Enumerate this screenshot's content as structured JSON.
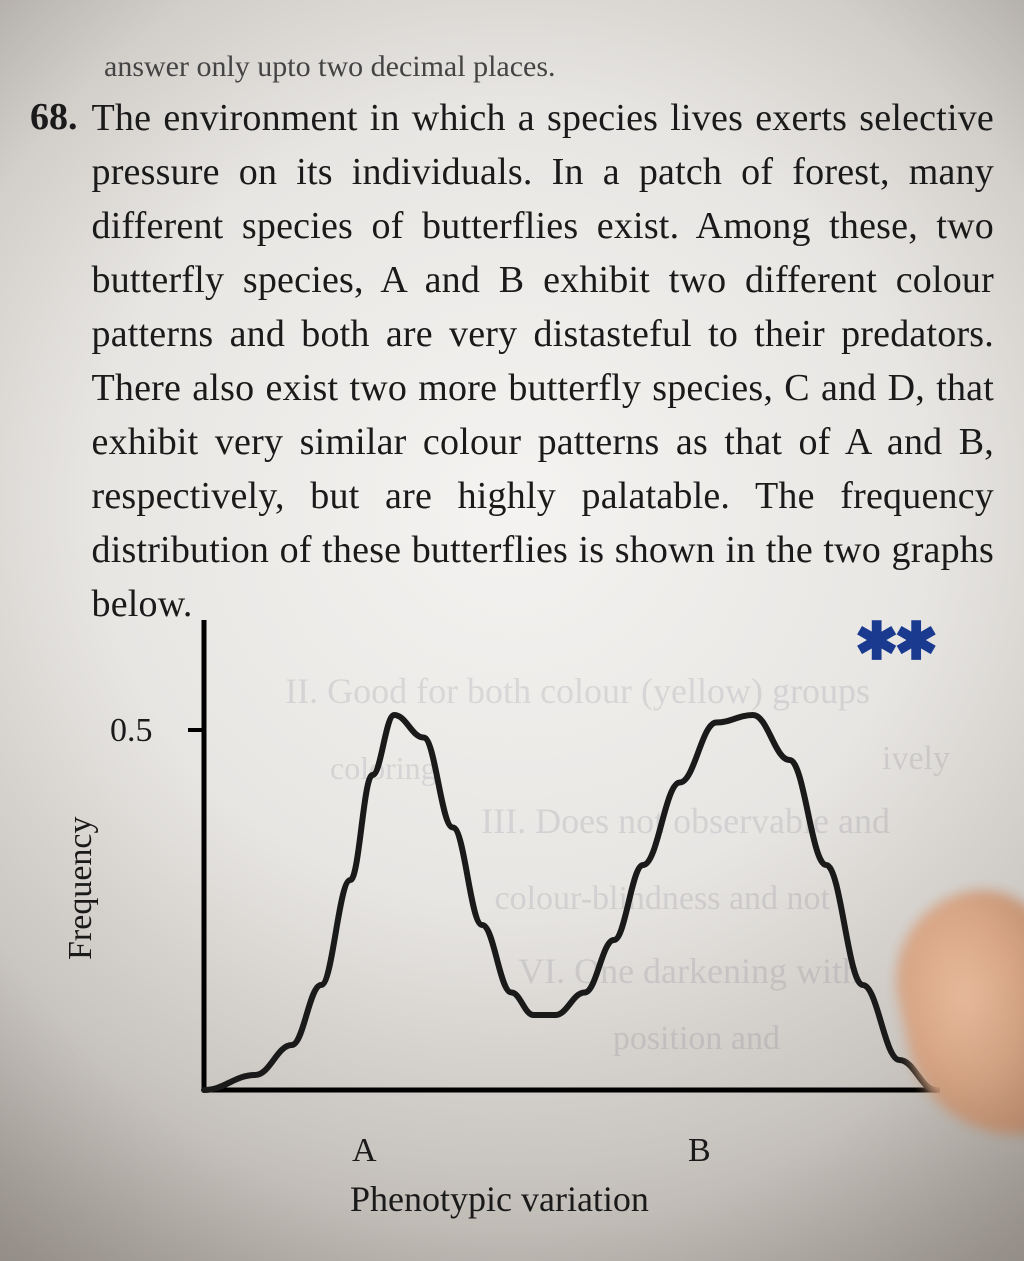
{
  "question": {
    "number": "68.",
    "truncated_line": "answer only upto two decimal places.",
    "text": "The environment in which a species lives exerts selective pressure on its individuals. In a patch of forest, many different species of butterflies exist. Among these, two butterfly species, A and B exhibit two different colour patterns and both are very distasteful to their predators. There also exist two more butterfly species, C and D, that exhibit very similar colour patterns as that of A and B, respectively, but are highly palatable. The frequency distribution of these butterflies is shown in the two graphs below."
  },
  "annotation": {
    "asterisks": "✱✱",
    "color": "#1a3a8f"
  },
  "chart": {
    "type": "line",
    "xlabel": "Phenotypic variation",
    "ylabel": "Frequency",
    "ytick_label": "0.5",
    "xticks": [
      "A",
      "B"
    ],
    "line_color": "#1a1a1a",
    "line_width": 6,
    "axis_color": "#000000",
    "axis_width": 5,
    "background_color": "transparent",
    "label_fontsize": 34,
    "series": {
      "x": [
        0,
        0.07,
        0.12,
        0.16,
        0.2,
        0.23,
        0.26,
        0.3,
        0.34,
        0.38,
        0.42,
        0.45,
        0.48,
        0.52,
        0.56,
        0.6,
        0.65,
        0.7,
        0.75,
        0.8,
        0.85,
        0.9,
        0.95,
        1.0
      ],
      "y": [
        0.0,
        0.02,
        0.06,
        0.14,
        0.28,
        0.42,
        0.5,
        0.47,
        0.35,
        0.22,
        0.13,
        0.1,
        0.1,
        0.13,
        0.2,
        0.3,
        0.41,
        0.49,
        0.5,
        0.44,
        0.3,
        0.14,
        0.04,
        0.0
      ]
    },
    "ylim": [
      0,
      0.6
    ]
  },
  "ghost_text": {
    "lines": [
      "II. Good for both colour (yellow) groups",
      "III. Does not observable and",
      "colour-blindness and not",
      "VI. One darkening with",
      "position and",
      "coloring",
      "ively"
    ],
    "color": "rgba(60,50,80,0.12)"
  }
}
